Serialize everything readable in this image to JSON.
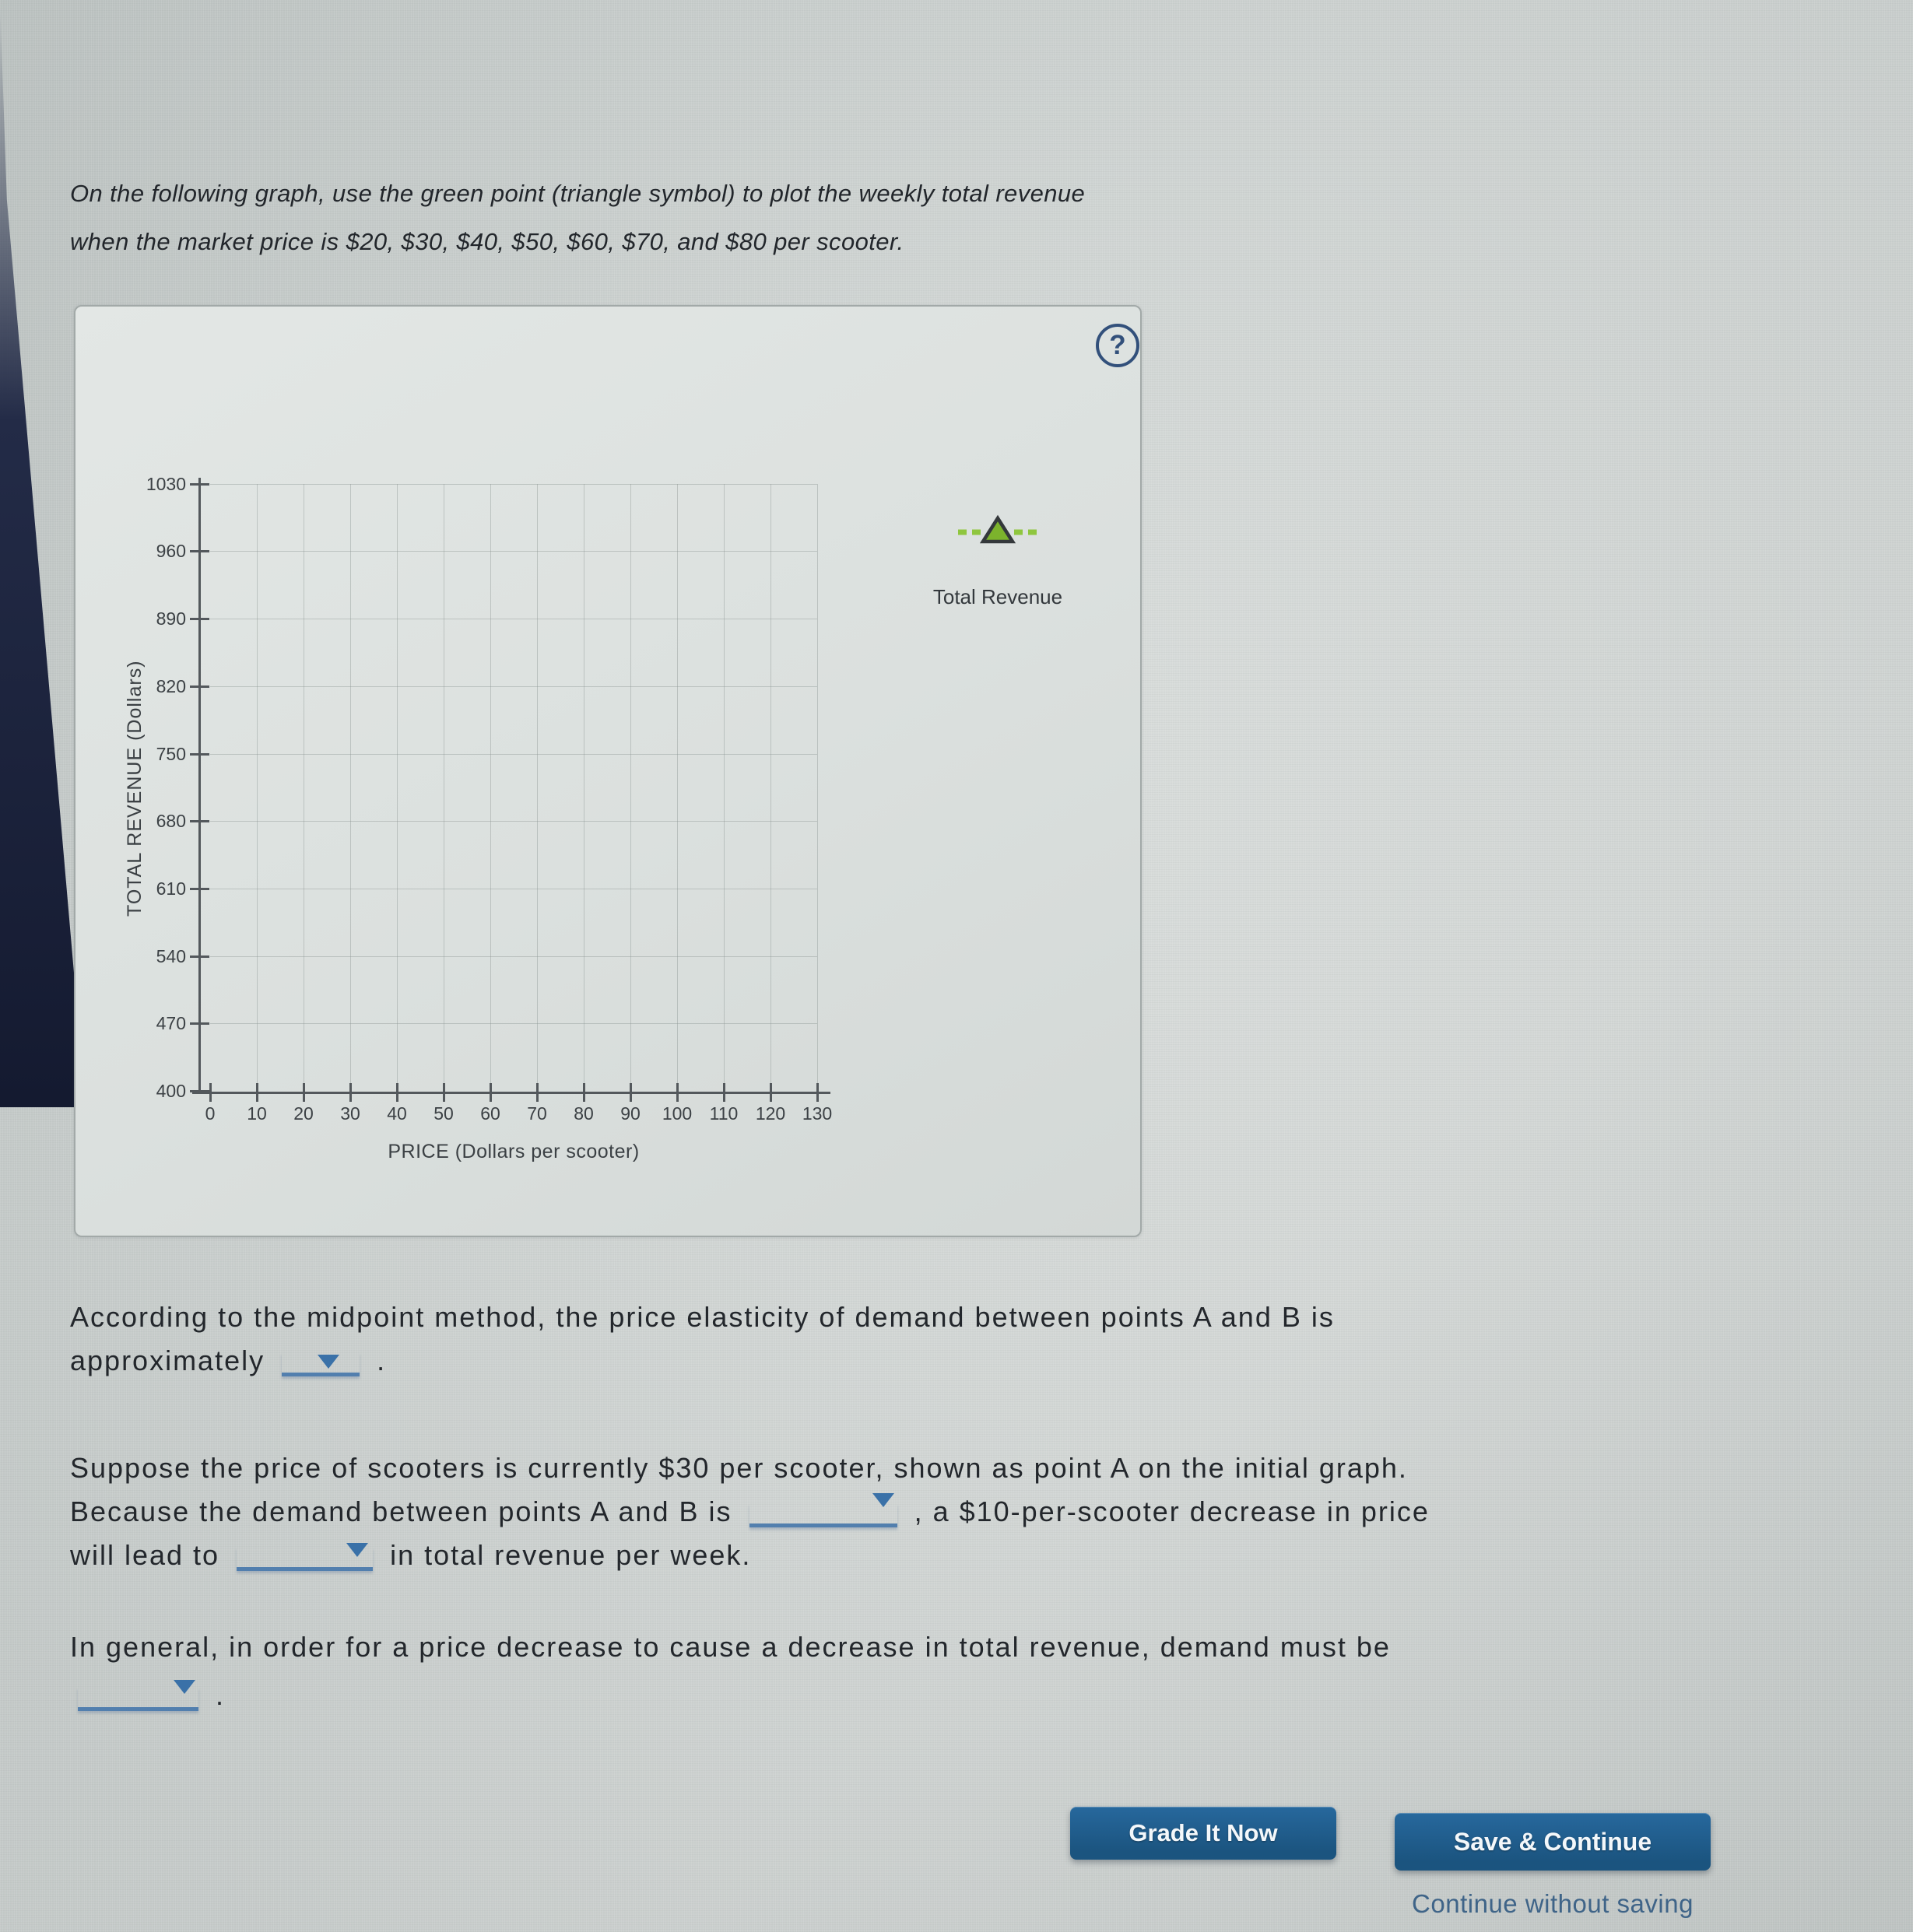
{
  "title": {
    "line1": "On the following graph, use the green point (triangle symbol) to plot the weekly total revenue",
    "line2": "when the market price is $20, $30, $40, $50, $60, $70, and $80 per scooter."
  },
  "panel": {
    "help_label": "?"
  },
  "chart_data": {
    "type": "scatter",
    "title": "",
    "xlabel": "PRICE (Dollars per scooter)",
    "ylabel": "TOTAL REVENUE (Dollars)",
    "x_ticks": [
      0,
      10,
      20,
      30,
      40,
      50,
      60,
      70,
      80,
      90,
      100,
      110,
      120,
      130
    ],
    "y_ticks": [
      400,
      470,
      540,
      610,
      680,
      750,
      820,
      890,
      960,
      1030
    ],
    "xlim": [
      0,
      130
    ],
    "ylim": [
      400,
      1030
    ],
    "grid": true,
    "legend": {
      "label": "Total Revenue",
      "position": "upper-right",
      "marker": "triangle",
      "marker_fill": "#7cb32c",
      "marker_stroke": "#34383b"
    },
    "series": [
      {
        "name": "Total Revenue",
        "marker": "triangle",
        "color": "#7cb32c",
        "points": []
      }
    ]
  },
  "questions": {
    "q1": {
      "line1": "According to the midpoint method, the price elasticity of demand between points A and B is",
      "line2_pre": "approximately",
      "line2_post": "."
    },
    "q2": {
      "line1": "Suppose the price of scooters is currently $30 per scooter, shown as point A on the initial graph.",
      "line2_pre": "Because the demand between points A and B is",
      "line2_post": ", a $10-per-scooter decrease in price",
      "line3_pre": "will lead to",
      "line3_post": "in total revenue per week."
    },
    "q3": {
      "line1": "In general, in order for a price decrease to cause a decrease in total revenue, demand must be",
      "line2_post": "."
    }
  },
  "buttons": {
    "grade": "Grade It Now",
    "save": "Save & Continue",
    "continue_link": "Continue without saving"
  },
  "colors": {
    "button_blue": "#1b547f",
    "dropdown_blue": "#527fae",
    "marker_green": "#7cb32c",
    "help_blue": "#32507b"
  }
}
